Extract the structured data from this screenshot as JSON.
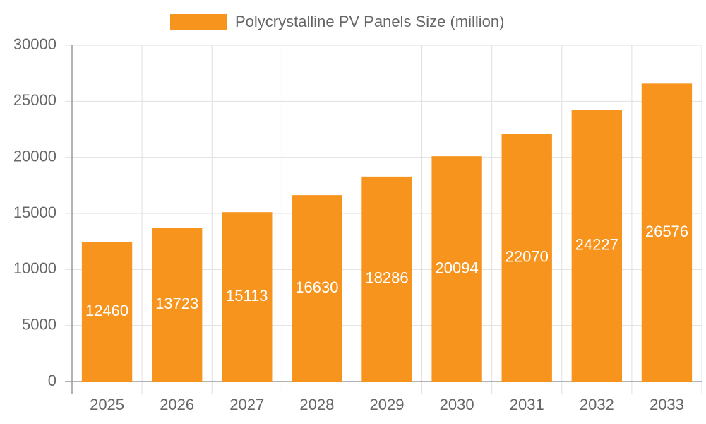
{
  "chart_data": {
    "type": "bar",
    "categories": [
      "2025",
      "2026",
      "2027",
      "2028",
      "2029",
      "2030",
      "2031",
      "2032",
      "2033"
    ],
    "series": [
      {
        "name": "Polycrystalline PV Panels Size (million)",
        "color": "#f7941d",
        "values": [
          12460,
          13723,
          15113,
          16630,
          18286,
          20094,
          22070,
          24227,
          26576
        ]
      }
    ],
    "ylim": [
      0,
      30000
    ],
    "yticks": [
      0,
      5000,
      10000,
      15000,
      20000,
      25000,
      30000
    ],
    "grid": true,
    "legend": "top"
  }
}
